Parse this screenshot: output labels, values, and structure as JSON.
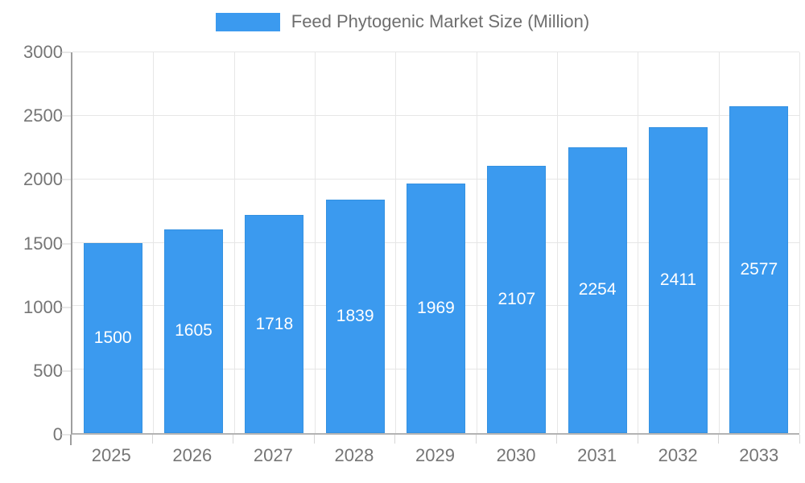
{
  "legend": {
    "label": "Feed Phytogenic Market Size (Million)"
  },
  "colors": {
    "bar": "#3b9aef",
    "bar_edge": "#2e86d4",
    "value_label": "#ffffff",
    "grid": "#e6e6e6",
    "y_axis_line": "#9e9e9e",
    "baseline": "#b3b3b3",
    "tick_text": "#757575",
    "legend_text": "#6e6e6e",
    "background": "#ffffff"
  },
  "chart_data": {
    "type": "bar",
    "title": "Feed Phytogenic Market Size (Million)",
    "categories": [
      "2025",
      "2026",
      "2027",
      "2028",
      "2029",
      "2030",
      "2031",
      "2032",
      "2033"
    ],
    "values": [
      1500,
      1605,
      1718,
      1839,
      1969,
      2107,
      2254,
      2411,
      2577
    ],
    "xlabel": "",
    "ylabel": "",
    "ylim": [
      0,
      3000
    ],
    "yticks": [
      0,
      500,
      1000,
      1500,
      2000,
      2500,
      3000
    ],
    "grid": true,
    "legend_position": "top",
    "value_label_position": "inside-center"
  }
}
